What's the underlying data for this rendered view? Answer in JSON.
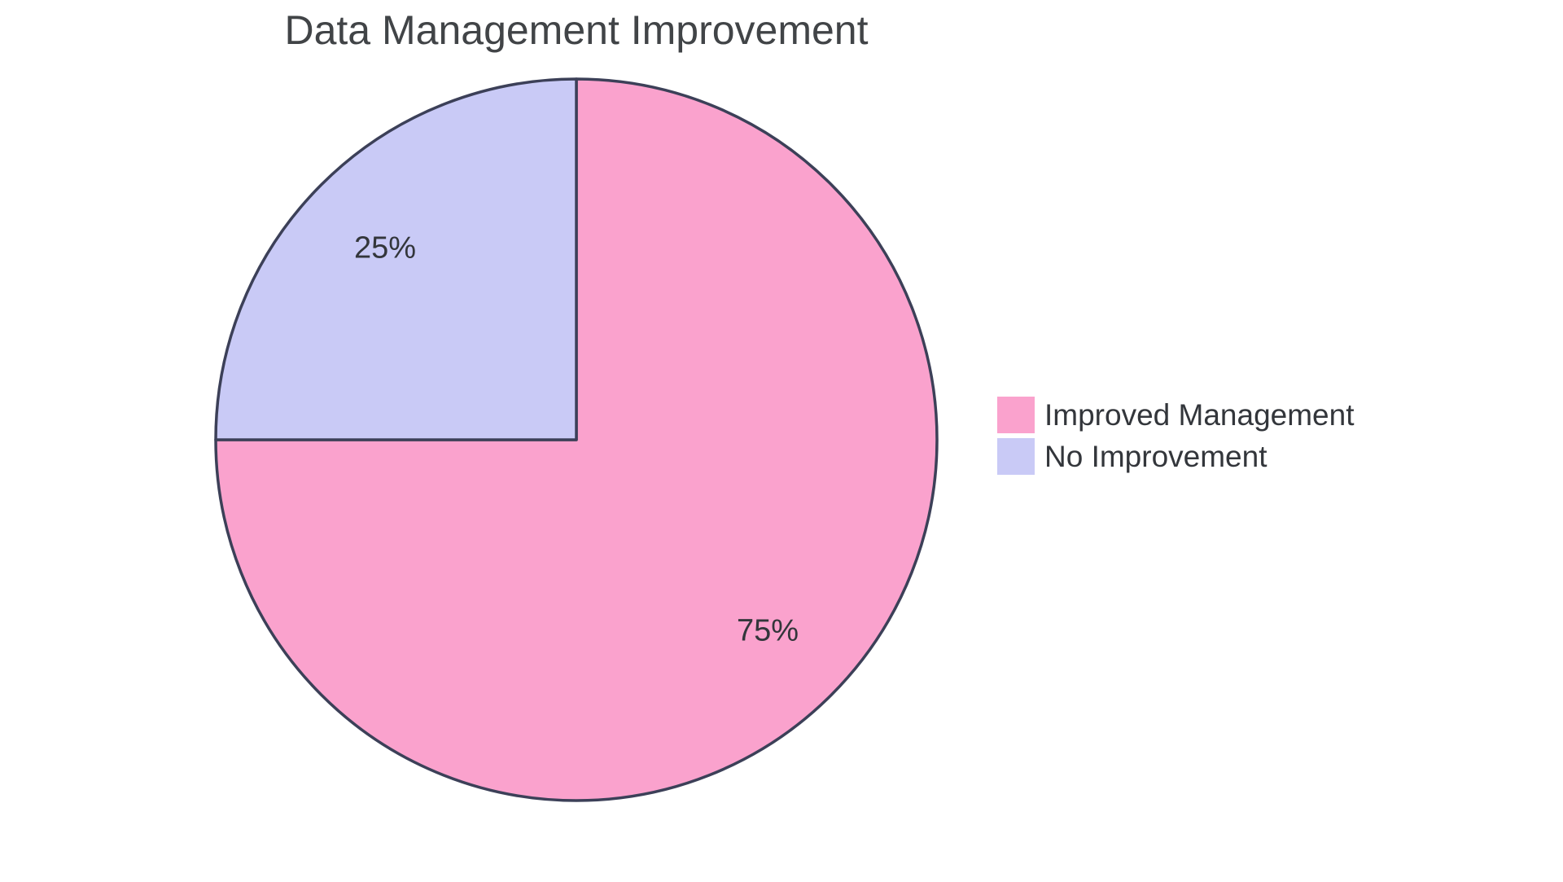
{
  "chart_data": {
    "type": "pie",
    "title": "Data Management Improvement",
    "slices": [
      {
        "label": "Improved Management",
        "value": 75,
        "percent_label": "75%",
        "color": "#FAA2CD"
      },
      {
        "label": "No Improvement",
        "value": 25,
        "percent_label": "25%",
        "color": "#C9CAF6"
      }
    ],
    "start_angle_deg": 0,
    "direction": "clockwise",
    "slice_border_color": "#3C4058",
    "slice_border_width": 3.5,
    "label_color": "#33363B",
    "title_color": "#414447",
    "legend_position": "middle-right",
    "legend_text_color": "#33363B",
    "background": "#FFFFFF",
    "grid": false
  }
}
